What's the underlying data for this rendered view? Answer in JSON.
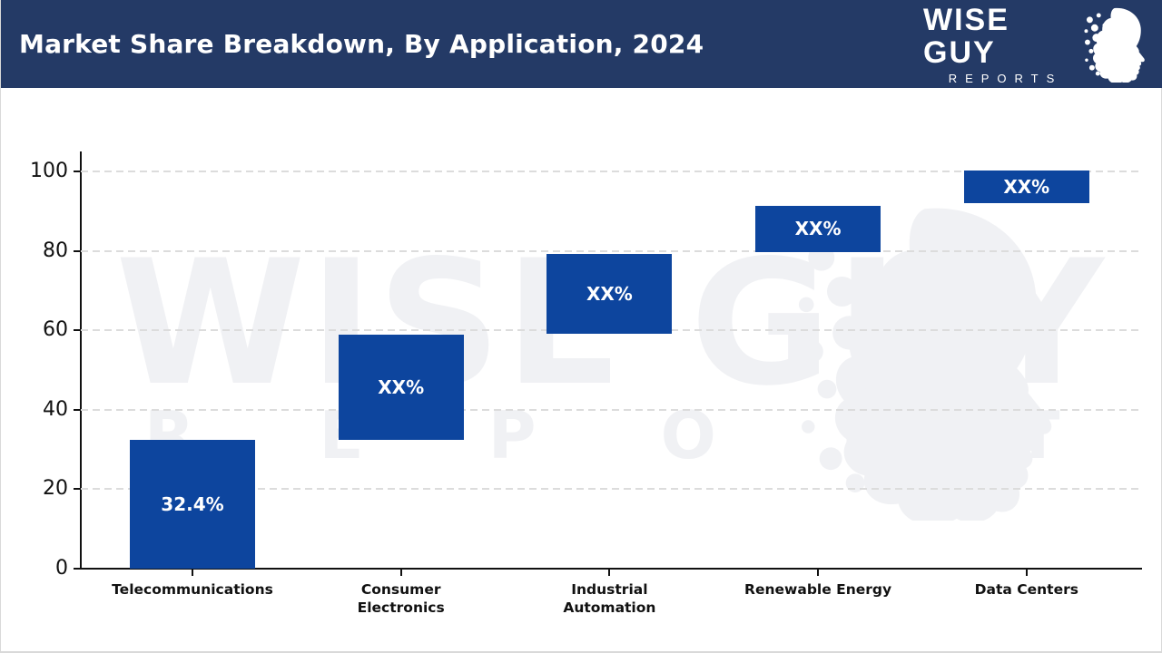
{
  "header": {
    "title": "Market Share Breakdown, By Application, 2024",
    "background_color": "#243a66",
    "logo": {
      "line1": "WISE GUY",
      "line2": "REPORTS"
    }
  },
  "watermark": {
    "line1": "WISE GUY",
    "line2": "REPORTS",
    "color": "#f0f1f4"
  },
  "chart_data": {
    "type": "waterfall",
    "title": "Market Share Breakdown, By Application, 2024",
    "categories": [
      "Telecommunications",
      "Consumer\nElectronics",
      "Industrial\nAutomation",
      "Renewable Energy",
      "Data Centers"
    ],
    "bars": [
      {
        "category": "Telecommunications",
        "start": 0,
        "end": 32.4,
        "label": "32.4%"
      },
      {
        "category": "Consumer Electronics",
        "start": 32.4,
        "end": 59.0,
        "label": "XX%"
      },
      {
        "category": "Industrial Automation",
        "start": 59.2,
        "end": 79.3,
        "label": "XX%"
      },
      {
        "category": "Renewable Energy",
        "start": 79.7,
        "end": 91.4,
        "label": "XX%"
      },
      {
        "category": "Data Centers",
        "start": 91.9,
        "end": 100.3,
        "label": "XX%"
      }
    ],
    "yticks": [
      0,
      20,
      40,
      60,
      80,
      100
    ],
    "ylim": [
      0,
      105
    ],
    "xlabel": "",
    "ylabel": "",
    "grid": "dashed-horizontal",
    "legend": "none",
    "bar_color": "#0d459e",
    "bar_label_color": "#ffffff",
    "grid_color": "#dcdcdc",
    "axis_color": "#111111"
  }
}
